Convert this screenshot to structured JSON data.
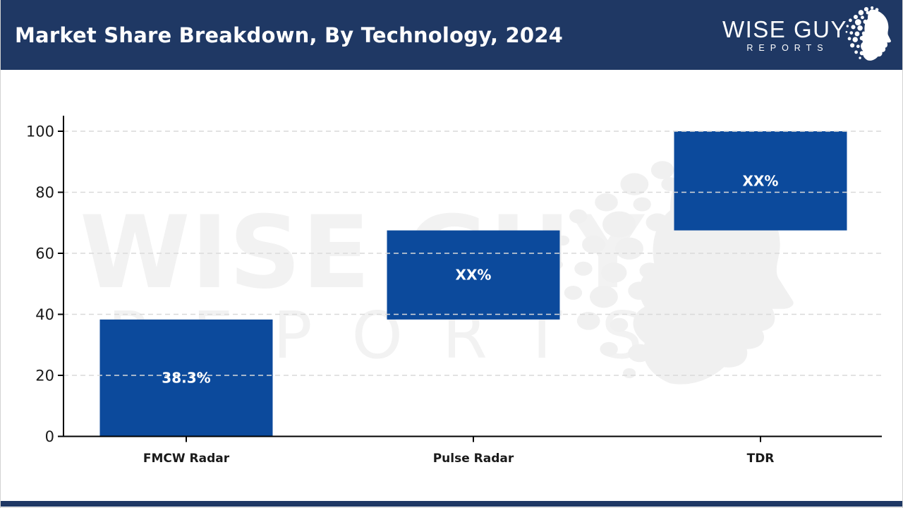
{
  "header": {
    "title": "Market Share Breakdown, By Technology, 2024",
    "logo": {
      "line1": "WISE GUY",
      "line2": "REPORTS"
    }
  },
  "watermark": {
    "line1": "WISE GUY",
    "line2": "REPORTS"
  },
  "footer": {},
  "colors": {
    "header_bg": "#1F3864",
    "footer_bg": "#1F3864",
    "bar": "#0C4A9C",
    "grid": "#D9D9D9",
    "axis": "#000000",
    "tick_label": "#1A1A1A",
    "bar_label": "#FFFFFF",
    "watermark": "#F2F2F2",
    "watermark_head": "#F0F0F0"
  },
  "chart_data": {
    "type": "bar",
    "subtype": "waterfall",
    "title": "Market Share Breakdown, By Technology, 2024",
    "categories": [
      "FMCW Radar",
      "Pulse Radar",
      "TDR"
    ],
    "series": [
      {
        "name": "Market Share (%)",
        "segments": [
          {
            "category": "FMCW Radar",
            "start": 0,
            "end": 38.3,
            "label": "38.3%"
          },
          {
            "category": "Pulse Radar",
            "start": 38.3,
            "end": 67.5,
            "label": "XX%"
          },
          {
            "category": "TDR",
            "start": 67.5,
            "end": 100,
            "label": "XX%"
          }
        ]
      }
    ],
    "xlabel": "",
    "ylabel": "",
    "ylim": [
      0,
      100
    ],
    "yticks": [
      0,
      20,
      40,
      60,
      80,
      100
    ],
    "ytick_labels": [
      "0",
      "20",
      "40",
      "60",
      "80",
      "100"
    ],
    "grid": "horizontal-dashed",
    "legend": "none"
  }
}
